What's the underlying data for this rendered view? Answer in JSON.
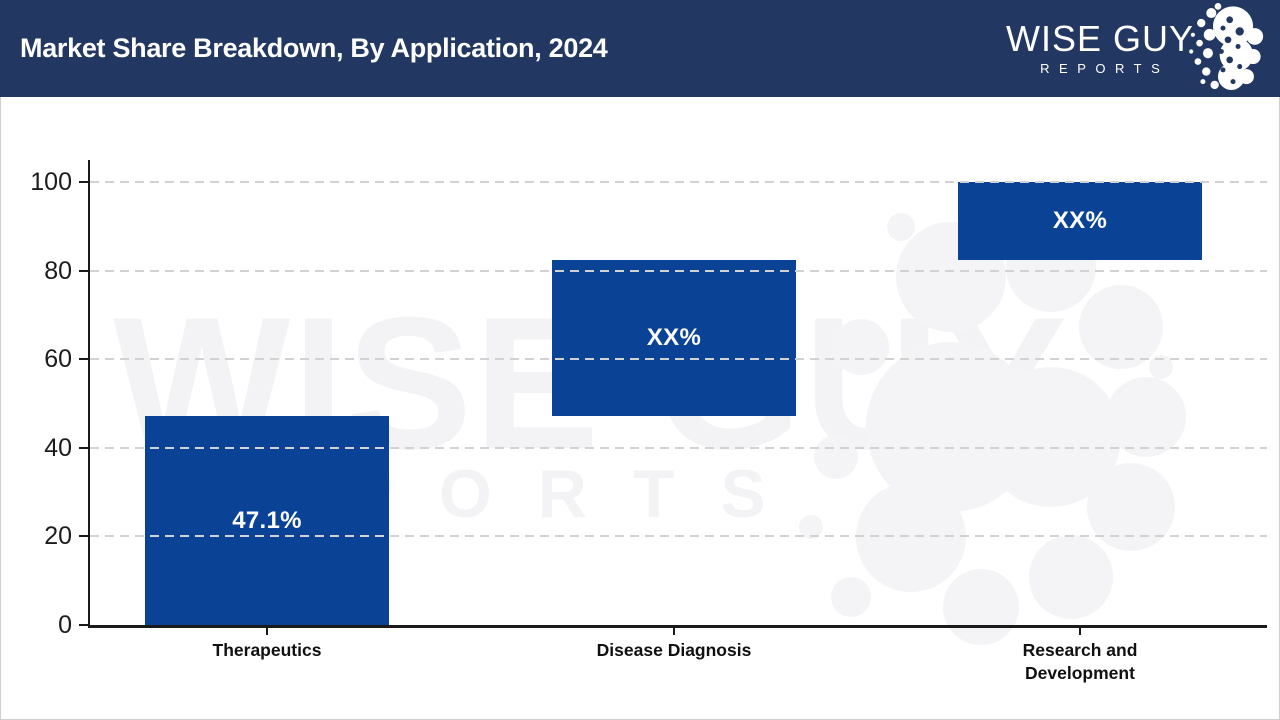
{
  "header": {
    "title": "Market Share Breakdown, By Application, 2024",
    "logo": {
      "line1": "WISE GUY",
      "line2": "REPORTS"
    }
  },
  "watermark": {
    "line1": "WISE GUY",
    "line2": "REPORTS"
  },
  "chart_data": {
    "type": "bar",
    "variant": "floating-waterfall",
    "title": "Market Share Breakdown, By Application, 2024",
    "categories": [
      "Therapeutics",
      "Disease Diagnosis",
      "Research and Development"
    ],
    "bars": [
      {
        "category": "Therapeutics",
        "start": 0,
        "end": 47.1,
        "label": "47.1%"
      },
      {
        "category": "Disease Diagnosis",
        "start": 47.1,
        "end": 82.3,
        "label": "XX%"
      },
      {
        "category": "Research and Development",
        "start": 82.3,
        "end": 100,
        "label": "XX%"
      }
    ],
    "yticks": [
      0,
      20,
      40,
      60,
      80,
      100
    ],
    "ylim": [
      0,
      100
    ],
    "xlabel": "",
    "ylabel": "",
    "grid": "horizontal-dashed",
    "legend": "none",
    "bar_color": "#0a4296",
    "bar_label_color": "#ffffff"
  },
  "colors": {
    "header_bg": "#223761",
    "bar": "#0a4296",
    "axis": "#1a1a1a",
    "gridline": "#d2d2d2",
    "watermark": "#f3f3f5",
    "title_text": "#ffffff"
  }
}
